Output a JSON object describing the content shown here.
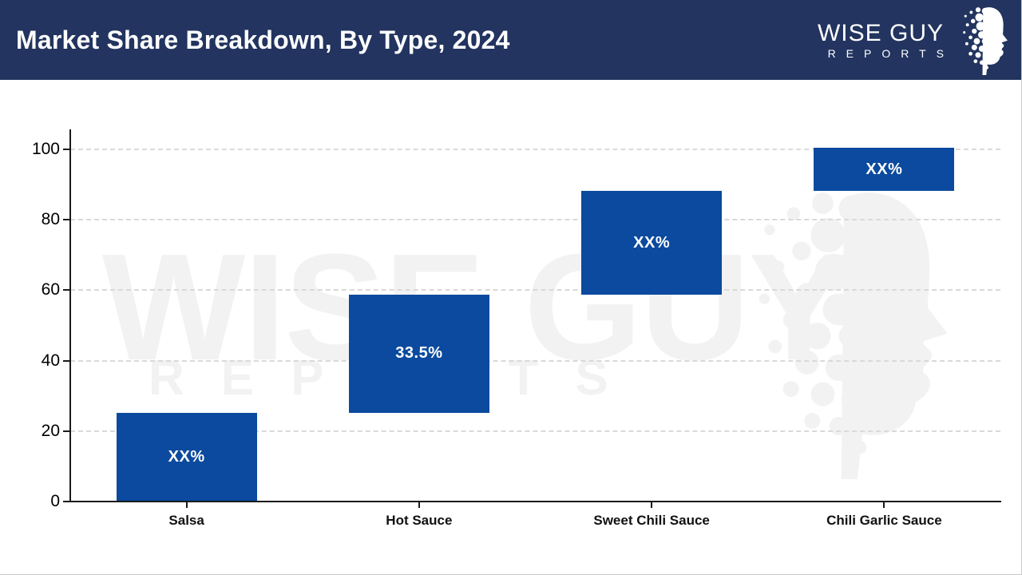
{
  "header": {
    "title": "Market Share Breakdown, By Type, 2024",
    "logo": {
      "brand_line1": "WISE GUY",
      "brand_line2": "REPORTS"
    }
  },
  "watermark": {
    "line1": "WISE GUY",
    "line2": "REPORTS"
  },
  "chart_data": {
    "type": "bar",
    "subtype": "floating-segment-waterfall",
    "title": "Market Share Breakdown, By Type, 2024",
    "categories": [
      "Salsa",
      "Hot Sauce",
      "Sweet Chili Sauce",
      "Chili Garlic Sauce"
    ],
    "series": [
      {
        "name": "Market share (%)",
        "segments": [
          {
            "category": "Salsa",
            "start": 0,
            "end": 25.2,
            "label": "XX%"
          },
          {
            "category": "Hot Sauce",
            "start": 25.2,
            "end": 58.7,
            "label": "33.5%"
          },
          {
            "category": "Sweet Chili Sauce",
            "start": 58.7,
            "end": 88.1,
            "label": "XX%"
          },
          {
            "category": "Chili Garlic Sauce",
            "start": 88.1,
            "end": 100.4,
            "label": "XX%"
          }
        ]
      }
    ],
    "xlabel": "",
    "ylabel": "",
    "ylim": [
      0,
      105.7
    ],
    "yticks": [
      0,
      20,
      40,
      60,
      80,
      100
    ],
    "grid": "horizontal-dashed",
    "legend": "none"
  },
  "colors": {
    "header_bg": "#22345f",
    "page_bg": "#ffffff",
    "bar": "#0b4a9e",
    "bar_label": "#ffffff",
    "axis": "#1a1a1a",
    "gridline": "#d9d9d9",
    "tick_label": "#000000",
    "watermark": "#f2f2f2"
  }
}
